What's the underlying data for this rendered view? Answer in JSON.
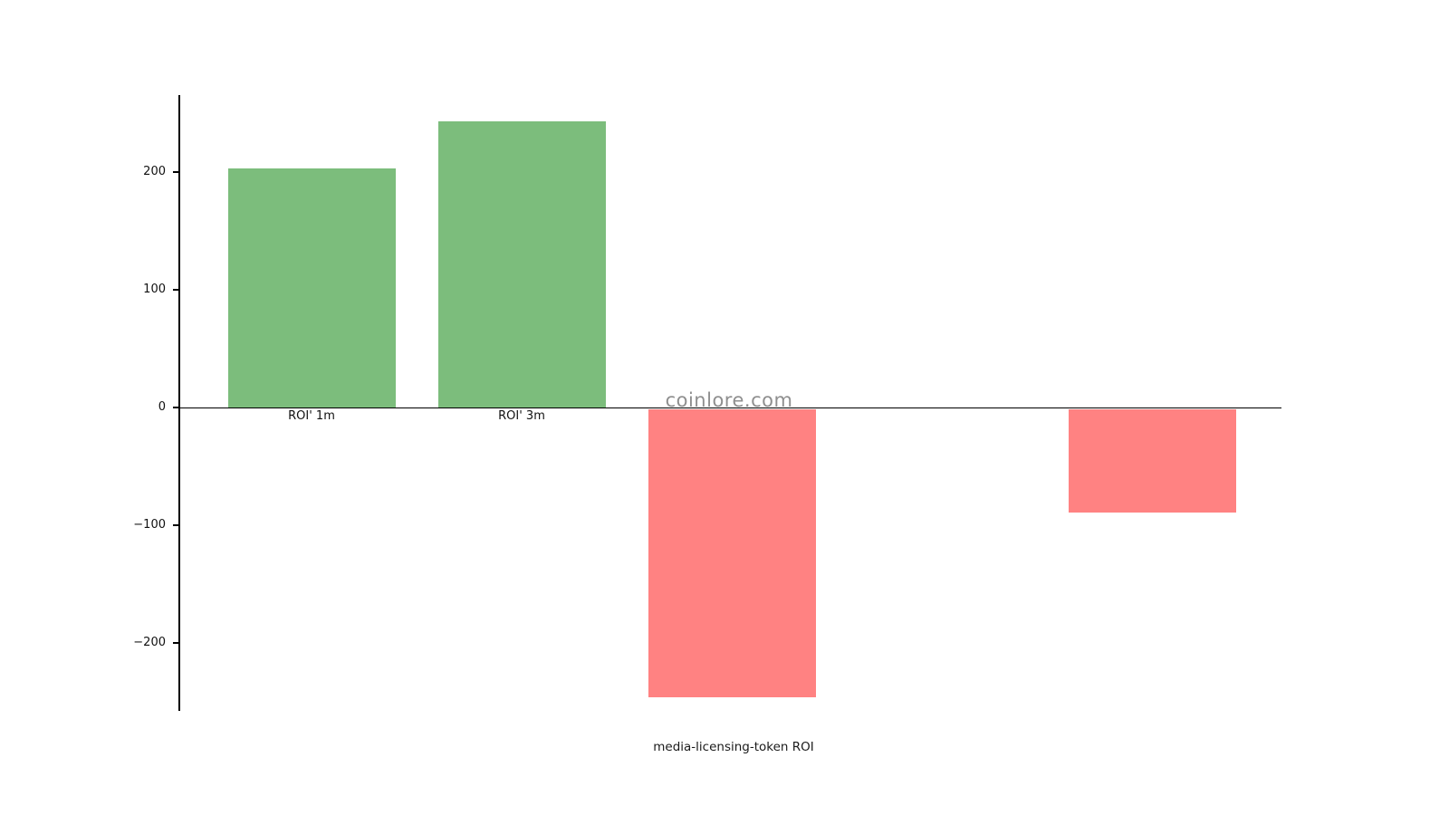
{
  "page": {
    "background_color": "#ffffff"
  },
  "chart_data": {
    "type": "bar",
    "title": "media-licensing-token ROI",
    "watermark": "coinlore.com",
    "xlabel": "",
    "ylabel": "",
    "ylim": [
      -265,
      265
    ],
    "grid": false,
    "legend": null,
    "bars": [
      {
        "slot": 0,
        "label": "ROI' 1m",
        "label_visible": true,
        "value": 203
      },
      {
        "slot": 1,
        "label": "ROI' 3m",
        "label_visible": true,
        "value": 243
      },
      {
        "slot": 2,
        "label": "",
        "label_visible": false,
        "value": -245
      },
      {
        "slot": 3,
        "label": "",
        "label_visible": false,
        "value": null
      },
      {
        "slot": 4,
        "label": "",
        "label_visible": false,
        "value": -88
      }
    ],
    "yticks": [
      {
        "value": 200,
        "label": "200"
      },
      {
        "value": 100,
        "label": "100"
      },
      {
        "value": 0,
        "label": "0"
      },
      {
        "value": -100,
        "label": "−100"
      },
      {
        "value": -200,
        "label": "−200"
      }
    ],
    "colors": {
      "positive_bar": "#7cbd7c",
      "negative_bar": "#ff8282",
      "axis": "#000000",
      "tick_label": "#111111",
      "watermark": "#7c7c7c",
      "title": "#1a1a1a"
    }
  }
}
